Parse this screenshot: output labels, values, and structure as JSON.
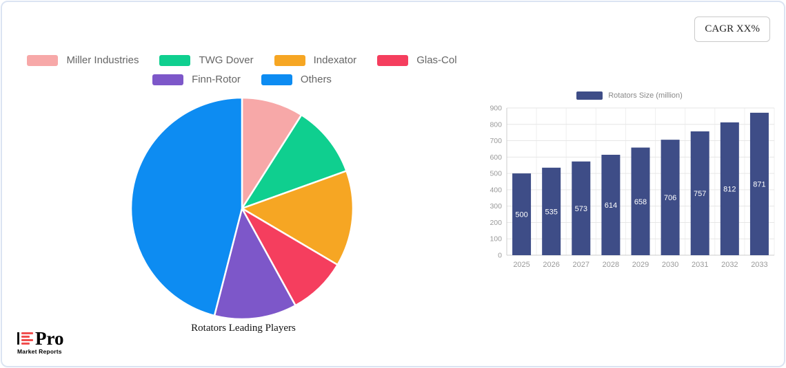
{
  "cagr_label": "CAGR XX%",
  "logo": {
    "name": "Pro",
    "subtitle": "Market Reports"
  },
  "colors": {
    "card_border": "#dbe4f2",
    "legend_text": "#666666",
    "axis_text": "#999999",
    "grid_line": "#e6e6e6",
    "bar_value_text": "#ffffff"
  },
  "chart_data": [
    {
      "type": "pie",
      "title": "Rotators Leading Players",
      "labels": [
        "Miller Industries",
        "TWG Dover",
        "Indexator",
        "Glas-Col",
        "Finn-Rotor",
        "Others"
      ],
      "values": [
        9,
        10.5,
        14,
        8.5,
        12,
        46
      ],
      "colors": [
        "#f7a8a8",
        "#0fcf8f",
        "#f6a623",
        "#f53e5e",
        "#7d57c9",
        "#0d8cf2"
      ],
      "legend_rows": [
        [
          0,
          1,
          2,
          3
        ],
        [
          4,
          5
        ]
      ],
      "start_angle": "top",
      "direction": "clockwise",
      "legend_position": "top"
    },
    {
      "type": "bar",
      "legend_label": "Rotators Size (million)",
      "categories": [
        "2025",
        "2026",
        "2027",
        "2028",
        "2029",
        "2030",
        "2031",
        "2032",
        "2033"
      ],
      "values": [
        500,
        535,
        573,
        614,
        658,
        706,
        757,
        812,
        871
      ],
      "ylim": [
        0,
        900
      ],
      "ytick_step": 100,
      "bar_color": "#3e4d87",
      "grid": true,
      "value_label_position": "inside-center",
      "legend_position": "top"
    }
  ]
}
